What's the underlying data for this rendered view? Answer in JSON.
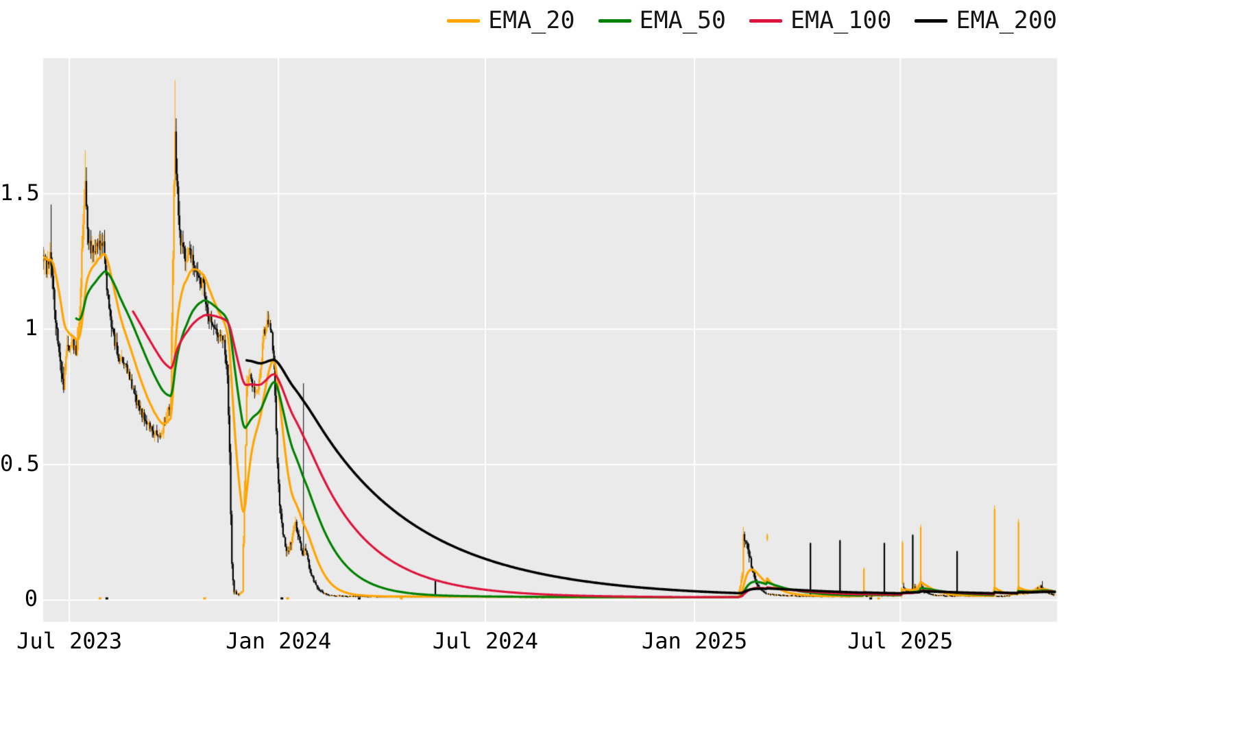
{
  "legend": {
    "items": [
      {
        "label": "EMA_20",
        "color": "#FFA500"
      },
      {
        "label": "EMA_50",
        "color": "#008000"
      },
      {
        "label": "EMA_100",
        "color": "#DC143C"
      },
      {
        "label": "EMA_200",
        "color": "#000000"
      }
    ]
  },
  "chart_data": {
    "type": "candlestick",
    "title": "",
    "xlabel": "",
    "ylabel": "",
    "grid": true,
    "legend_position": "top-right-outside",
    "x_range": [
      "2023-06-08",
      "2025-11-16"
    ],
    "ylim": [
      -0.08,
      2.0
    ],
    "yticks": [
      {
        "value": 0,
        "label": "0"
      },
      {
        "value": 0.5,
        "label": "0.5"
      },
      {
        "value": 1,
        "label": "1"
      },
      {
        "value": 1.5,
        "label": "1.5"
      }
    ],
    "xticks": [
      {
        "date": "2023-07-01",
        "label": "Jul 2023"
      },
      {
        "date": "2024-01-01",
        "label": "Jan 2024"
      },
      {
        "date": "2024-07-01",
        "label": "Jul 2024"
      },
      {
        "date": "2025-01-01",
        "label": "Jan 2025"
      },
      {
        "date": "2025-07-01",
        "label": "Jul 2025"
      }
    ],
    "style": {
      "plot_bg": "#eaeaea",
      "grid_color": "#ffffff",
      "candle_up": "#FFA500",
      "candle_down": "#000000"
    },
    "noise_seed": 1234,
    "emas": [
      {
        "name": "EMA_20",
        "span": 20,
        "color": "#FFA500"
      },
      {
        "name": "EMA_50",
        "span": 50,
        "color": "#008000"
      },
      {
        "name": "EMA_100",
        "span": 100,
        "color": "#DC143C"
      },
      {
        "name": "EMA_200",
        "span": 200,
        "color": "#000000"
      }
    ],
    "close_keypoints": [
      [
        "2023-05-19",
        1.3,
        0.1
      ],
      [
        "2023-06-01",
        1.26,
        0.1
      ],
      [
        "2023-06-08",
        1.25,
        0.11
      ],
      [
        "2023-06-11",
        1.22,
        0.12
      ],
      [
        "2023-06-14",
        1.28,
        0.13
      ],
      [
        "2023-06-17",
        1.12,
        0.1
      ],
      [
        "2023-06-20",
        1.0,
        0.09
      ],
      [
        "2023-06-23",
        0.86,
        0.08
      ],
      [
        "2023-06-26",
        0.8,
        0.09
      ],
      [
        "2023-06-29",
        0.92,
        0.08
      ],
      [
        "2023-07-03",
        0.96,
        0.07
      ],
      [
        "2023-07-07",
        0.92,
        0.08
      ],
      [
        "2023-07-10",
        1.05,
        0.1
      ],
      [
        "2023-07-13",
        1.4,
        0.13
      ],
      [
        "2023-07-15",
        1.52,
        0.14
      ],
      [
        "2023-07-18",
        1.33,
        0.11
      ],
      [
        "2023-07-22",
        1.27,
        0.1
      ],
      [
        "2023-07-27",
        1.31,
        0.09
      ],
      [
        "2023-07-31",
        1.3,
        0.09
      ],
      [
        "2023-08-04",
        1.12,
        0.08
      ],
      [
        "2023-08-09",
        0.96,
        0.08
      ],
      [
        "2023-08-14",
        0.89,
        0.07
      ],
      [
        "2023-08-20",
        0.86,
        0.06
      ],
      [
        "2023-08-26",
        0.77,
        0.06
      ],
      [
        "2023-09-01",
        0.7,
        0.06
      ],
      [
        "2023-09-07",
        0.66,
        0.05
      ],
      [
        "2023-09-13",
        0.62,
        0.05
      ],
      [
        "2023-09-19",
        0.6,
        0.06
      ],
      [
        "2023-09-24",
        0.67,
        0.06
      ],
      [
        "2023-09-28",
        0.72,
        0.07
      ],
      [
        "2023-09-30",
        1.3,
        0.2
      ],
      [
        "2023-10-02",
        1.72,
        0.18
      ],
      [
        "2023-10-04",
        1.5,
        0.13
      ],
      [
        "2023-10-07",
        1.32,
        0.1
      ],
      [
        "2023-10-11",
        1.26,
        0.09
      ],
      [
        "2023-10-15",
        1.3,
        0.08
      ],
      [
        "2023-10-19",
        1.23,
        0.08
      ],
      [
        "2023-10-23",
        1.18,
        0.08
      ],
      [
        "2023-10-27",
        1.16,
        0.08
      ],
      [
        "2023-10-31",
        1.06,
        0.07
      ],
      [
        "2023-11-04",
        1.01,
        0.06
      ],
      [
        "2023-11-09",
        0.98,
        0.06
      ],
      [
        "2023-11-14",
        0.95,
        0.06
      ],
      [
        "2023-11-17",
        0.84,
        0.07
      ],
      [
        "2023-11-19",
        0.55,
        0.1
      ],
      [
        "2023-11-21",
        0.12,
        0.06
      ],
      [
        "2023-11-23",
        0.03,
        0.02
      ],
      [
        "2023-11-27",
        0.02,
        0.012
      ],
      [
        "2023-11-30",
        0.03,
        0.02
      ],
      [
        "2023-12-02",
        0.4,
        0.1
      ],
      [
        "2023-12-04",
        0.78,
        0.09
      ],
      [
        "2023-12-07",
        0.82,
        0.06
      ],
      [
        "2023-12-10",
        0.79,
        0.05
      ],
      [
        "2023-12-13",
        0.76,
        0.05
      ],
      [
        "2023-12-16",
        0.85,
        0.07
      ],
      [
        "2023-12-19",
        0.98,
        0.08
      ],
      [
        "2023-12-22",
        1.04,
        0.07
      ],
      [
        "2023-12-26",
        0.98,
        0.06
      ],
      [
        "2023-12-28",
        0.88,
        0.07
      ],
      [
        "2023-12-30",
        0.6,
        0.09
      ],
      [
        "2024-01-02",
        0.35,
        0.06
      ],
      [
        "2024-01-05",
        0.25,
        0.05
      ],
      [
        "2024-01-08",
        0.17,
        0.04
      ],
      [
        "2024-01-12",
        0.21,
        0.05
      ],
      [
        "2024-01-16",
        0.28,
        0.05
      ],
      [
        "2024-01-19",
        0.23,
        0.04
      ],
      [
        "2024-01-22",
        0.16,
        0.04
      ],
      [
        "2024-01-25",
        0.19,
        0.04
      ],
      [
        "2024-01-28",
        0.12,
        0.03
      ],
      [
        "2024-02-01",
        0.07,
        0.02
      ],
      [
        "2024-02-06",
        0.035,
        0.015
      ],
      [
        "2024-02-12",
        0.02,
        0.008
      ],
      [
        "2024-02-20",
        0.016,
        0.006
      ],
      [
        "2024-03-05",
        0.014,
        0.005
      ],
      [
        "2024-04-01",
        0.013,
        0.004
      ],
      [
        "2024-05-16",
        0.013,
        0.004
      ],
      [
        "2024-05-20",
        0.013,
        0.004
      ],
      [
        "2024-07-01",
        0.012,
        0.003
      ],
      [
        "2024-09-01",
        0.011,
        0.003
      ],
      [
        "2024-11-01",
        0.01,
        0.003
      ],
      [
        "2025-01-05",
        0.01,
        0.003
      ],
      [
        "2025-02-08",
        0.012,
        0.004
      ],
      [
        "2025-02-12",
        0.1,
        0.05
      ],
      [
        "2025-02-13",
        0.24,
        0.05
      ],
      [
        "2025-02-15",
        0.22,
        0.05
      ],
      [
        "2025-02-17",
        0.19,
        0.05
      ],
      [
        "2025-02-20",
        0.13,
        0.04
      ],
      [
        "2025-02-23",
        0.08,
        0.03
      ],
      [
        "2025-02-27",
        0.045,
        0.02
      ],
      [
        "2025-03-03",
        0.028,
        0.012
      ],
      [
        "2025-03-10",
        0.02,
        0.008
      ],
      [
        "2025-03-20",
        0.017,
        0.006
      ],
      [
        "2025-04-05",
        0.015,
        0.005
      ],
      [
        "2025-05-15",
        0.014,
        0.005
      ],
      [
        "2025-07-01",
        0.018,
        0.008
      ],
      [
        "2025-07-03",
        0.06,
        0.03
      ],
      [
        "2025-07-05",
        0.04,
        0.02
      ],
      [
        "2025-07-10",
        0.03,
        0.015
      ],
      [
        "2025-07-14",
        0.05,
        0.025
      ],
      [
        "2025-07-19",
        0.06,
        0.03
      ],
      [
        "2025-07-22",
        0.03,
        0.015
      ],
      [
        "2025-07-28",
        0.02,
        0.008
      ],
      [
        "2025-08-10",
        0.016,
        0.006
      ],
      [
        "2025-09-05",
        0.015,
        0.005
      ],
      [
        "2025-10-01",
        0.015,
        0.006
      ],
      [
        "2025-10-25",
        0.03,
        0.015
      ],
      [
        "2025-11-01",
        0.05,
        0.02
      ],
      [
        "2025-11-05",
        0.035,
        0.015
      ],
      [
        "2025-11-10",
        0.022,
        0.01
      ],
      [
        "2025-11-14",
        0.02,
        0.008
      ]
    ],
    "spikes": [
      {
        "date": "2023-06-15",
        "high": 1.46,
        "kind": "wick"
      },
      {
        "date": "2023-07-15",
        "high": 1.66,
        "kind": "wick"
      },
      {
        "date": "2023-10-02",
        "high": 1.92,
        "kind": "wick"
      },
      {
        "date": "2024-01-23",
        "high": 0.8,
        "kind": "wick"
      },
      {
        "date": "2024-05-18",
        "high": 0.07,
        "kind": "down"
      },
      {
        "date": "2025-02-13",
        "high": 0.27,
        "kind": "wick"
      },
      {
        "date": "2025-03-06",
        "high": 0.24,
        "kind": "dot"
      },
      {
        "date": "2025-04-13",
        "high": 0.21,
        "kind": "down"
      },
      {
        "date": "2025-05-09",
        "high": 0.22,
        "kind": "down"
      },
      {
        "date": "2025-05-30",
        "high": 0.12,
        "kind": "up"
      },
      {
        "date": "2025-06-17",
        "high": 0.21,
        "kind": "down"
      },
      {
        "date": "2025-07-03",
        "high": 0.22,
        "kind": "up"
      },
      {
        "date": "2025-07-12",
        "high": 0.24,
        "kind": "down"
      },
      {
        "date": "2025-07-19",
        "high": 0.28,
        "kind": "up"
      },
      {
        "date": "2025-08-20",
        "high": 0.18,
        "kind": "down"
      },
      {
        "date": "2025-09-22",
        "high": 0.35,
        "kind": "up"
      },
      {
        "date": "2025-10-13",
        "high": 0.3,
        "kind": "up"
      },
      {
        "date": "2025-11-03",
        "high": 0.07,
        "kind": "wick"
      }
    ],
    "floor_marks": [
      "2023-07-28",
      "2023-08-03",
      "2023-10-28",
      "2024-01-04",
      "2024-01-09",
      "2024-03-12",
      "2024-04-18",
      "2025-06-05",
      "2025-06-12"
    ]
  }
}
